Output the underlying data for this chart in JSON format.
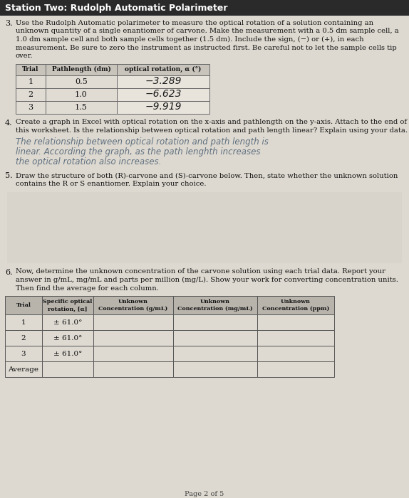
{
  "title": "Station Two: Rudolph Automatic Polarimeter",
  "bg_color": "#ddd9d0",
  "header_bg": "#2a2a2a",
  "header_text_color": "#ffffff",
  "question3_text_lines": [
    "Use the Rudolph Automatic polarimeter to measure the optical rotation of a solution containing an",
    "unknown quantity of a single enantiomer of carvone. Make the measurement with a 0.5 dm sample cell, a",
    "1.0 dm sample cell and both sample cells together (1.5 dm). Include the sign, (−) or (+), in each",
    "measurement. Be sure to zero the instrument as instructed first. Be careful not to let the sample cells tip",
    "over."
  ],
  "table1_headers": [
    "Trial",
    "Pathlength (dm)",
    "optical rotation, α (°)"
  ],
  "table1_rows": [
    [
      "1",
      "0.5",
      "−3.289"
    ],
    [
      "2",
      "1.0",
      "−6.623"
    ],
    [
      "3",
      "1.5",
      "−9.919"
    ]
  ],
  "question4_text_lines": [
    "Create a graph in Excel with optical rotation on the x-axis and pathlength on the y-axis. Attach to the end of",
    "this worksheet. Is the relationship between optical rotation and path length linear? Explain using your data."
  ],
  "question4_handwritten_lines": [
    "The relationship between optical rotation and path length is",
    "linear. According the graph, as the path lenghth increases",
    "the optical rotation also increases."
  ],
  "question5_text_lines": [
    "Draw the structure of both (R)-carvone and (S)-carvone below. Then, state whether the unknown solution",
    "contains the R or S enantiomer. Explain your choice."
  ],
  "question6_text_lines": [
    "Now, determine the unknown concentration of the carvone solution using each trial data. Report your",
    "answer in g/mL, mg/mL and parts per million (mg/L). Show your work for converting concentration units.",
    "Then find the average for each column."
  ],
  "table2_col1_header": "Trial",
  "table2_col2_header": "Specific optical\nrotation, [α]",
  "table2_col3_header": "Unknown\nConcentration (g/mL)",
  "table2_col4_header": "Unknown\nConcentration (mg/mL)",
  "table2_col5_header": "Unknown\nConcentration (ppm)",
  "table2_rows": [
    [
      "1",
      "± 61.0°",
      "",
      "",
      ""
    ],
    [
      "2",
      "± 61.0°",
      "",
      "",
      ""
    ],
    [
      "3",
      "± 61.0°",
      "",
      "",
      ""
    ],
    [
      "Average",
      "",
      "",
      "",
      ""
    ]
  ],
  "page_footer": "Page 2 of 5"
}
